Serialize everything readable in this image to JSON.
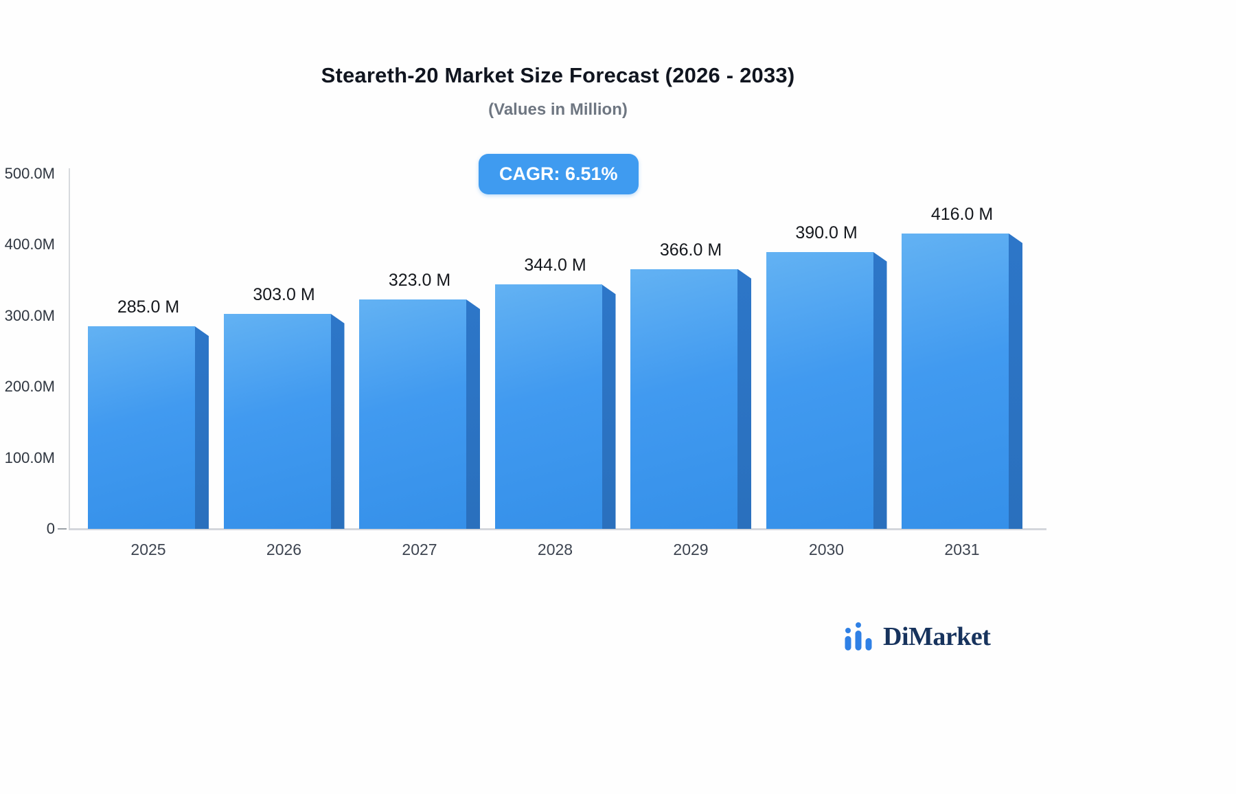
{
  "header": {
    "title": "Steareth-20 Market Size Forecast (2026 - 2033)",
    "subtitle": "(Values in Million)"
  },
  "badge": {
    "label": "CAGR: 6.51%",
    "background_color": "#3f9bf0",
    "text_color": "#ffffff"
  },
  "chart_data": {
    "type": "bar",
    "categories": [
      "2025",
      "2026",
      "2027",
      "2028",
      "2029",
      "2030",
      "2031"
    ],
    "values": [
      285,
      303,
      323,
      344,
      366,
      390,
      416
    ],
    "value_labels": [
      "285.0 M",
      "303.0 M",
      "323.0 M",
      "344.0 M",
      "366.0 M",
      "390.0 M",
      "416.0 M"
    ],
    "title": "Steareth-20 Market Size Forecast (2026 - 2033)",
    "xlabel": "",
    "ylabel": "",
    "ylim": [
      0,
      500
    ],
    "y_ticks": [
      {
        "label": "500.0M",
        "value": 500
      },
      {
        "label": "400.0M",
        "value": 400
      },
      {
        "label": "300.0M",
        "value": 300
      },
      {
        "label": "200.0M",
        "value": 200
      },
      {
        "label": "100.0M",
        "value": 100
      },
      {
        "label": "0",
        "value": 0
      }
    ],
    "grid": false,
    "legend": "none",
    "bar_color_main": "#419af0",
    "bar_color_side": "#2a70bd"
  },
  "logo": {
    "text": "DiMarket",
    "icon": "bar-chart-icon",
    "icon_color": "#2f80e5",
    "text_color": "#17335d"
  }
}
